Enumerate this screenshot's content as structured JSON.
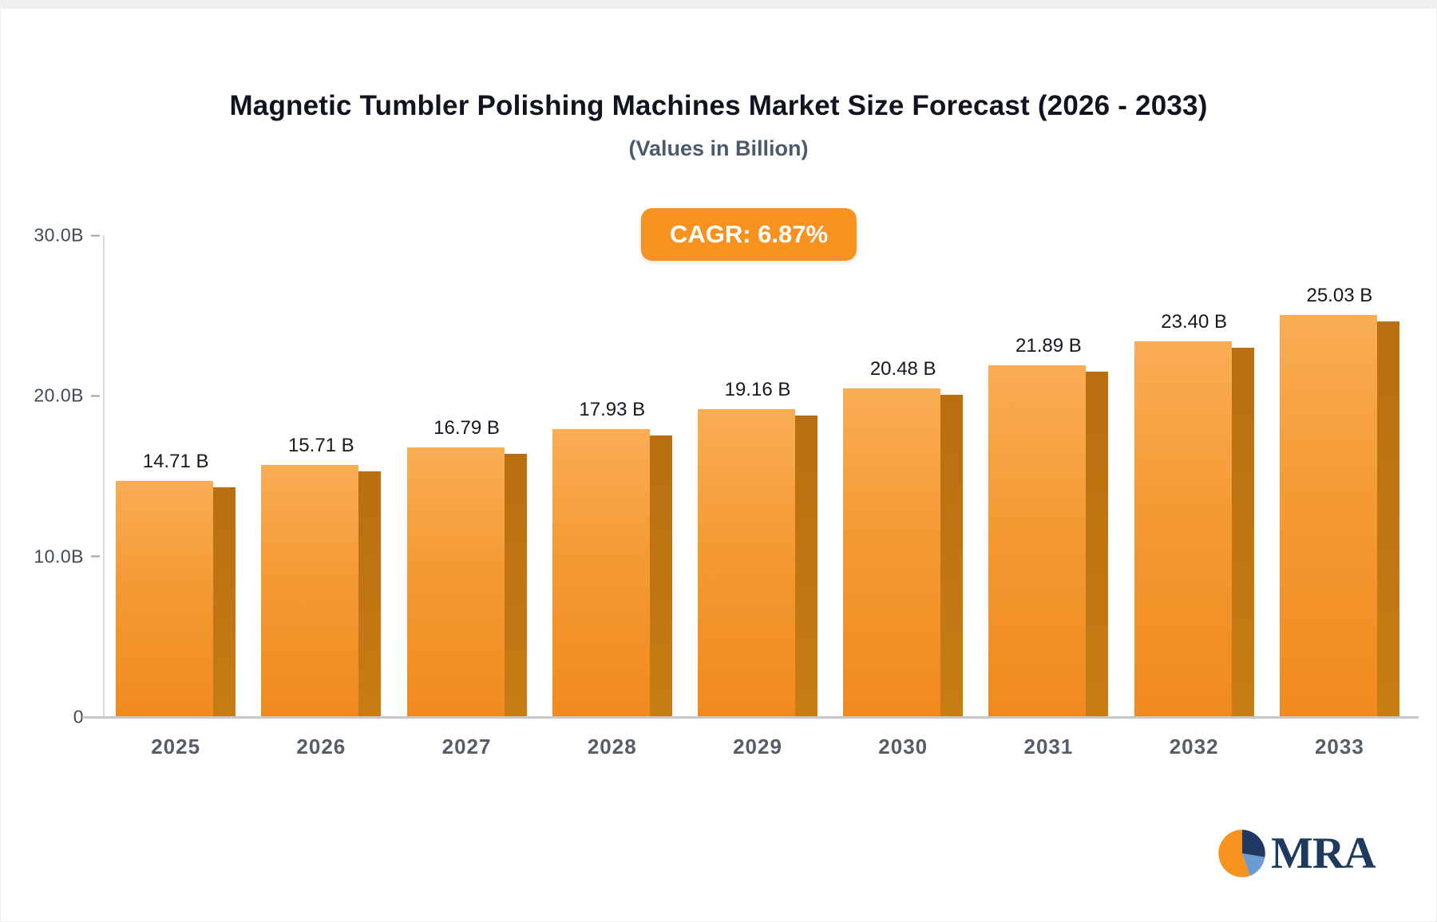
{
  "header": {
    "title": "Magnetic Tumbler Polishing Machines Market Size Forecast (2026 - 2033)",
    "subtitle": "(Values in Billion)"
  },
  "badge": {
    "label": "CAGR: 6.87%"
  },
  "chart_data": {
    "type": "bar",
    "title": "Magnetic Tumbler Polishing Machines Market Size Forecast (2026 - 2033)",
    "subtitle": "(Values in Billion)",
    "categories": [
      "2025",
      "2026",
      "2027",
      "2028",
      "2029",
      "2030",
      "2031",
      "2032",
      "2033"
    ],
    "values": [
      14.71,
      15.71,
      16.79,
      17.93,
      19.16,
      20.48,
      21.89,
      23.4,
      25.03
    ],
    "value_labels": [
      "14.71 B",
      "15.71 B",
      "16.79 B",
      "17.93 B",
      "19.16 B",
      "20.48 B",
      "21.89 B",
      "23.40 B",
      "25.03 B"
    ],
    "unit": "Billion",
    "cagr": "6.87%",
    "xlabel": "",
    "ylabel": "",
    "ylim": [
      0,
      30
    ],
    "yticks": [
      {
        "label": "30.0B",
        "value": 30
      },
      {
        "label": "20.0B",
        "value": 20
      },
      {
        "label": "10.0B",
        "value": 10
      },
      {
        "label": "0",
        "value": 0
      }
    ],
    "grid": false,
    "legend_position": "none",
    "bar_color_top": "#FAAD55",
    "bar_color_bottom": "#F08A1E",
    "bar_side_color": "#C2770F",
    "badge_color": "#F6921E"
  },
  "logo": {
    "text": "MRA",
    "icon": "pie-circle-icon",
    "colors": {
      "orange": "#F6921E",
      "navy": "#1F3864",
      "blue": "#6C9BD2"
    }
  }
}
